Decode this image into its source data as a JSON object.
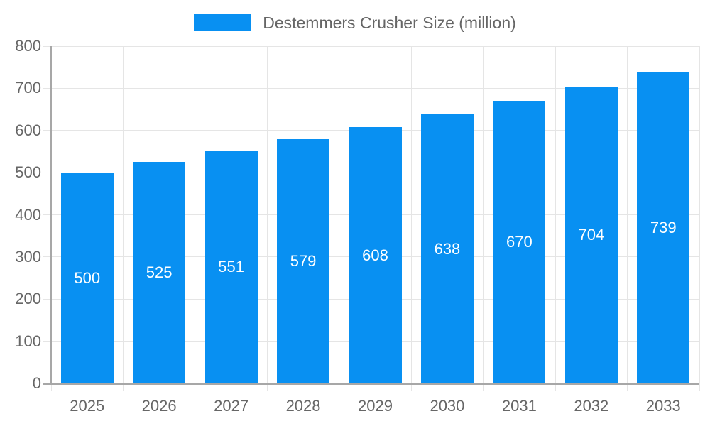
{
  "legend": {
    "label": "Destemmers Crusher Size (million)"
  },
  "colors": {
    "bar": "#0890f2",
    "grid": "#e5e5e5",
    "tick": "#e5e5e5",
    "axis": "#a7a7a7",
    "tick_label": "#666666",
    "value_label": "#ffffff"
  },
  "chart_data": {
    "type": "bar",
    "title": "Destemmers Crusher Size (million)",
    "categories": [
      "2025",
      "2026",
      "2027",
      "2028",
      "2029",
      "2030",
      "2031",
      "2032",
      "2033"
    ],
    "values": [
      500,
      525,
      551,
      579,
      608,
      638,
      670,
      704,
      739
    ],
    "xlabel": "",
    "ylabel": "",
    "ylim": [
      0,
      800
    ],
    "ytick_step": 100,
    "grid": true,
    "legend_position": "top",
    "value_labels": "inside-center"
  }
}
